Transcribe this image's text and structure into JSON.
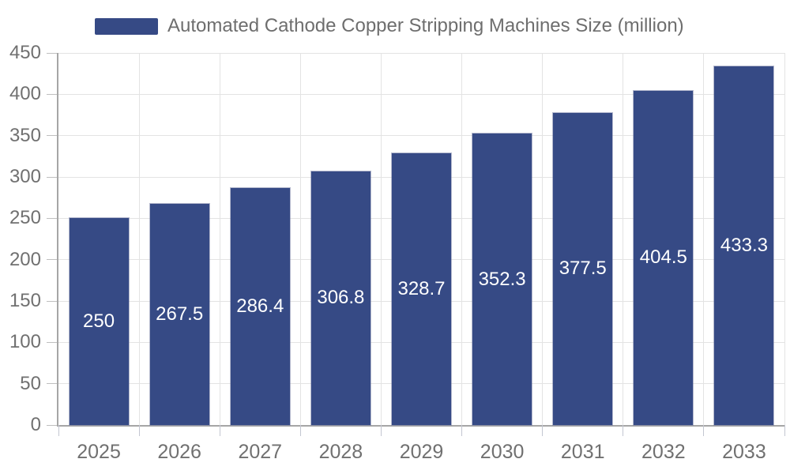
{
  "legend": {
    "label": "Automated Cathode Copper Stripping Machines Size (million)"
  },
  "colors": {
    "bar": "#364a85",
    "axis": "#a6a6a6",
    "grid": "#e3e3e3",
    "tick": "#bfbfbf",
    "axis_label_text": "#707070",
    "legend_text": "#6e6e6e",
    "value_label_text": "#ffffff",
    "background": "#ffffff"
  },
  "chart_data": {
    "type": "bar",
    "title": "Automated Cathode Copper Stripping Machines Size (million)",
    "categories": [
      "2025",
      "2026",
      "2027",
      "2028",
      "2029",
      "2030",
      "2031",
      "2032",
      "2033"
    ],
    "values": [
      250,
      267.5,
      286.4,
      306.8,
      328.7,
      352.3,
      377.5,
      404.5,
      433.3
    ],
    "value_labels": [
      "250",
      "267.5",
      "286.4",
      "306.8",
      "328.7",
      "352.3",
      "377.5",
      "404.5",
      "433.3"
    ],
    "xlabel": "",
    "ylabel": "",
    "ylim": [
      0,
      450
    ],
    "ytick_step": 50,
    "ytick_labels": [
      "0",
      "50",
      "100",
      "150",
      "200",
      "250",
      "300",
      "350",
      "400",
      "450"
    ],
    "grid": true,
    "legend_position": "top",
    "value_label_position": "center-of-bar"
  }
}
